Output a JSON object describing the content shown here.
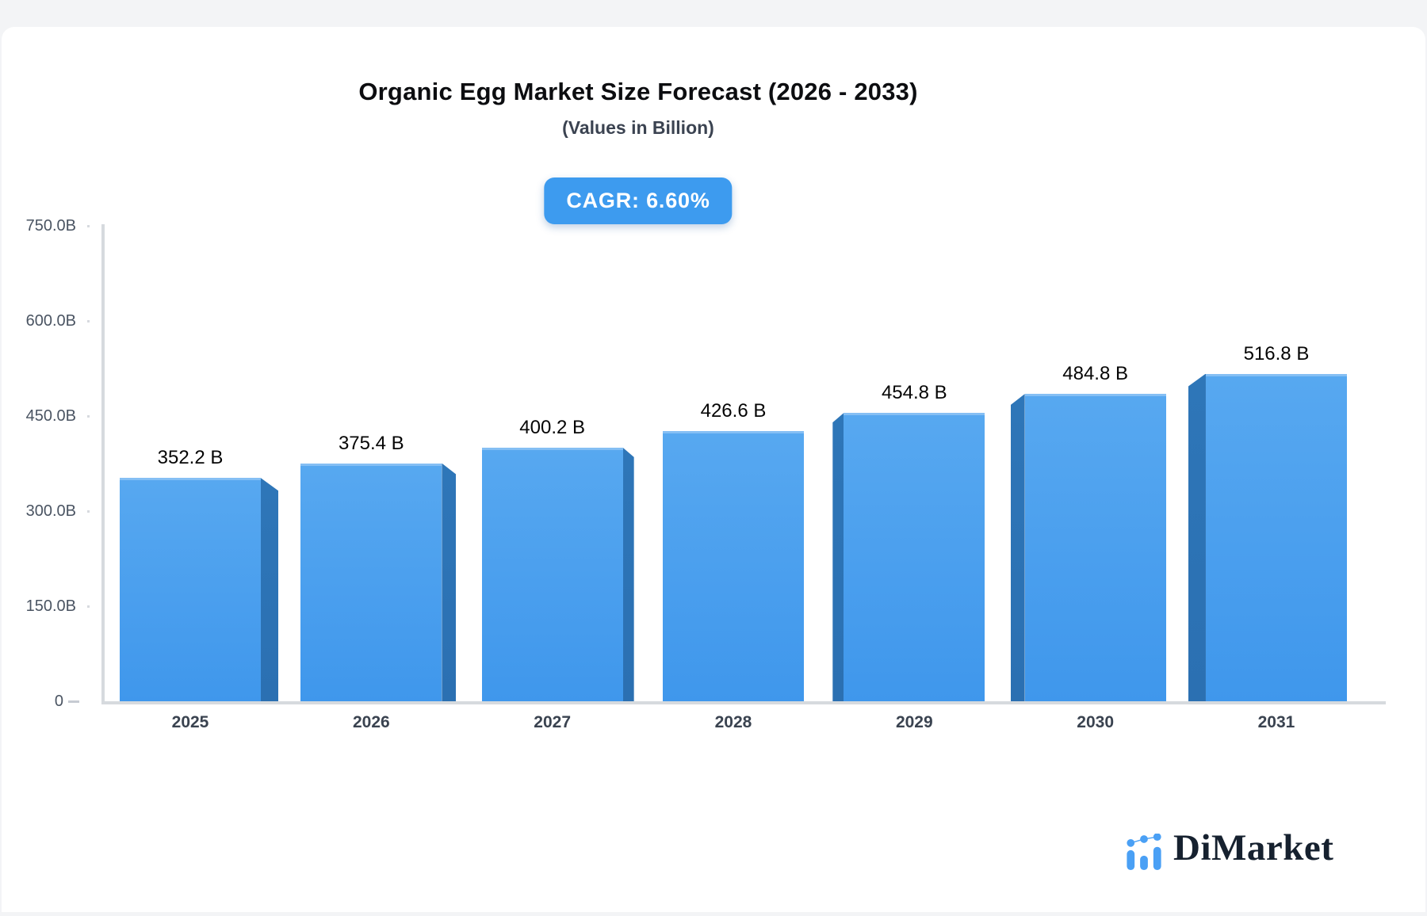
{
  "header": {
    "title": "Organic Egg Market Size Forecast (2026 - 2033)",
    "subtitle": "(Values in Billion)",
    "cagr_label": "CAGR: 6.60%"
  },
  "chart_data": {
    "type": "bar",
    "title": "Organic Egg Market Size Forecast (2026 - 2033)",
    "subtitle": "(Values in Billion)",
    "cagr": "6.60%",
    "categories": [
      "2025",
      "2026",
      "2027",
      "2028",
      "2029",
      "2030",
      "2031"
    ],
    "values": [
      352.2,
      375.4,
      400.2,
      426.6,
      454.8,
      484.8,
      516.8
    ],
    "value_labels": [
      "352.2 B",
      "375.4 B",
      "400.2 B",
      "426.6 B",
      "454.8 B",
      "484.8 B",
      "516.8 B"
    ],
    "unit": "Billion",
    "ylim": [
      0,
      750
    ],
    "y_ticks": [
      {
        "value": 750,
        "label": "750.0B"
      },
      {
        "value": 600,
        "label": "600.0B"
      },
      {
        "value": 450,
        "label": "450.0B"
      },
      {
        "value": 300,
        "label": "300.0B"
      },
      {
        "value": 150,
        "label": "150.0B"
      },
      {
        "value": 0,
        "label": "0"
      }
    ],
    "grid": false,
    "legend": "none",
    "colors": {
      "bar_top": "#57a8f0",
      "bar_bottom": "#3f97ec",
      "bar_top_edge": "#85bff4",
      "bar_side": "#2e76b8",
      "bar_side_dark": "#2b70b2",
      "axis": "#d6dade",
      "badge_bg": "#3d9bef"
    }
  },
  "footer": {
    "brand": "DiMarket",
    "logo_icon": "mini-bar-chart-icon",
    "logo_color": "#4aa0f5",
    "brand_color": "#16212f"
  }
}
